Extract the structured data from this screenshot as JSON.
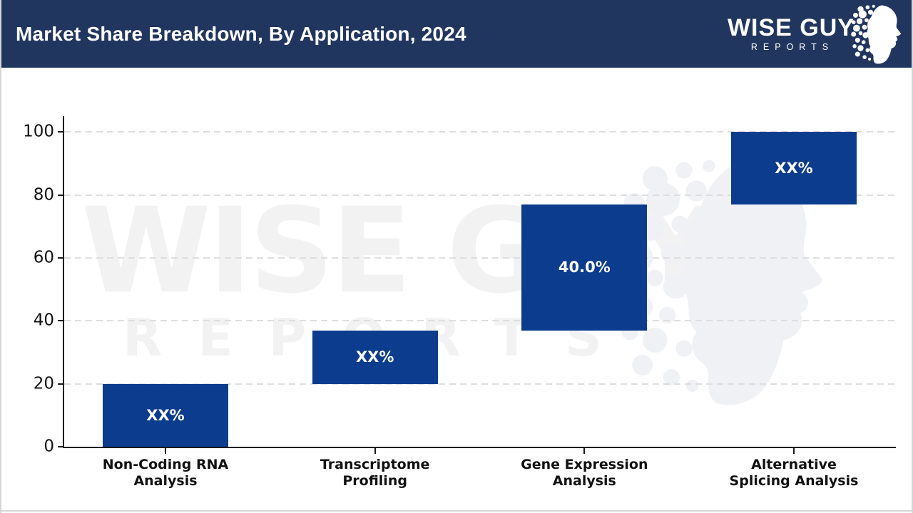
{
  "header": {
    "title": "Market Share Breakdown, By Application, 2024",
    "logo": {
      "name": "WISE GUY",
      "subtitle": "REPORTS"
    }
  },
  "watermark": {
    "name": "WISE GUY",
    "subtitle": "REPORTS"
  },
  "colors": {
    "header_bg": "#21365f",
    "bar_blue": "#0c3c8e",
    "gridline": "#dedede",
    "watermark": "#f2f2f3"
  },
  "chart_data": {
    "type": "bar",
    "subtype": "floating-waterfall",
    "title": "Market Share Breakdown, By Application, 2024",
    "categories": [
      "Non-Coding RNA Analysis",
      "Transcriptome Profiling",
      "Gene Expression Analysis",
      "Alternative Splicing Analysis"
    ],
    "category_lines": [
      [
        "Non-Coding RNA",
        "Analysis"
      ],
      [
        "Transcriptome",
        "Profiling"
      ],
      [
        "Gene Expression",
        "Analysis"
      ],
      [
        "Alternative",
        "Splicing Analysis"
      ]
    ],
    "bars": [
      {
        "category": "Non-Coding RNA Analysis",
        "start": 0,
        "end": 20,
        "label": "XX%"
      },
      {
        "category": "Transcriptome Profiling",
        "start": 20,
        "end": 37,
        "label": "XX%"
      },
      {
        "category": "Gene Expression Analysis",
        "start": 37,
        "end": 77,
        "label": "40.0%",
        "value": 40.0
      },
      {
        "category": "Alternative Splicing Analysis",
        "start": 77,
        "end": 100,
        "label": "XX%"
      }
    ],
    "ylim": [
      0,
      100
    ],
    "yticks": [
      0,
      20,
      40,
      60,
      80,
      100
    ],
    "xlabel": "",
    "ylabel": "",
    "grid": "horizontal-dashed",
    "legend": "none",
    "bar_color": "#0c3c8e",
    "bar_label_color": "#ffffff"
  }
}
